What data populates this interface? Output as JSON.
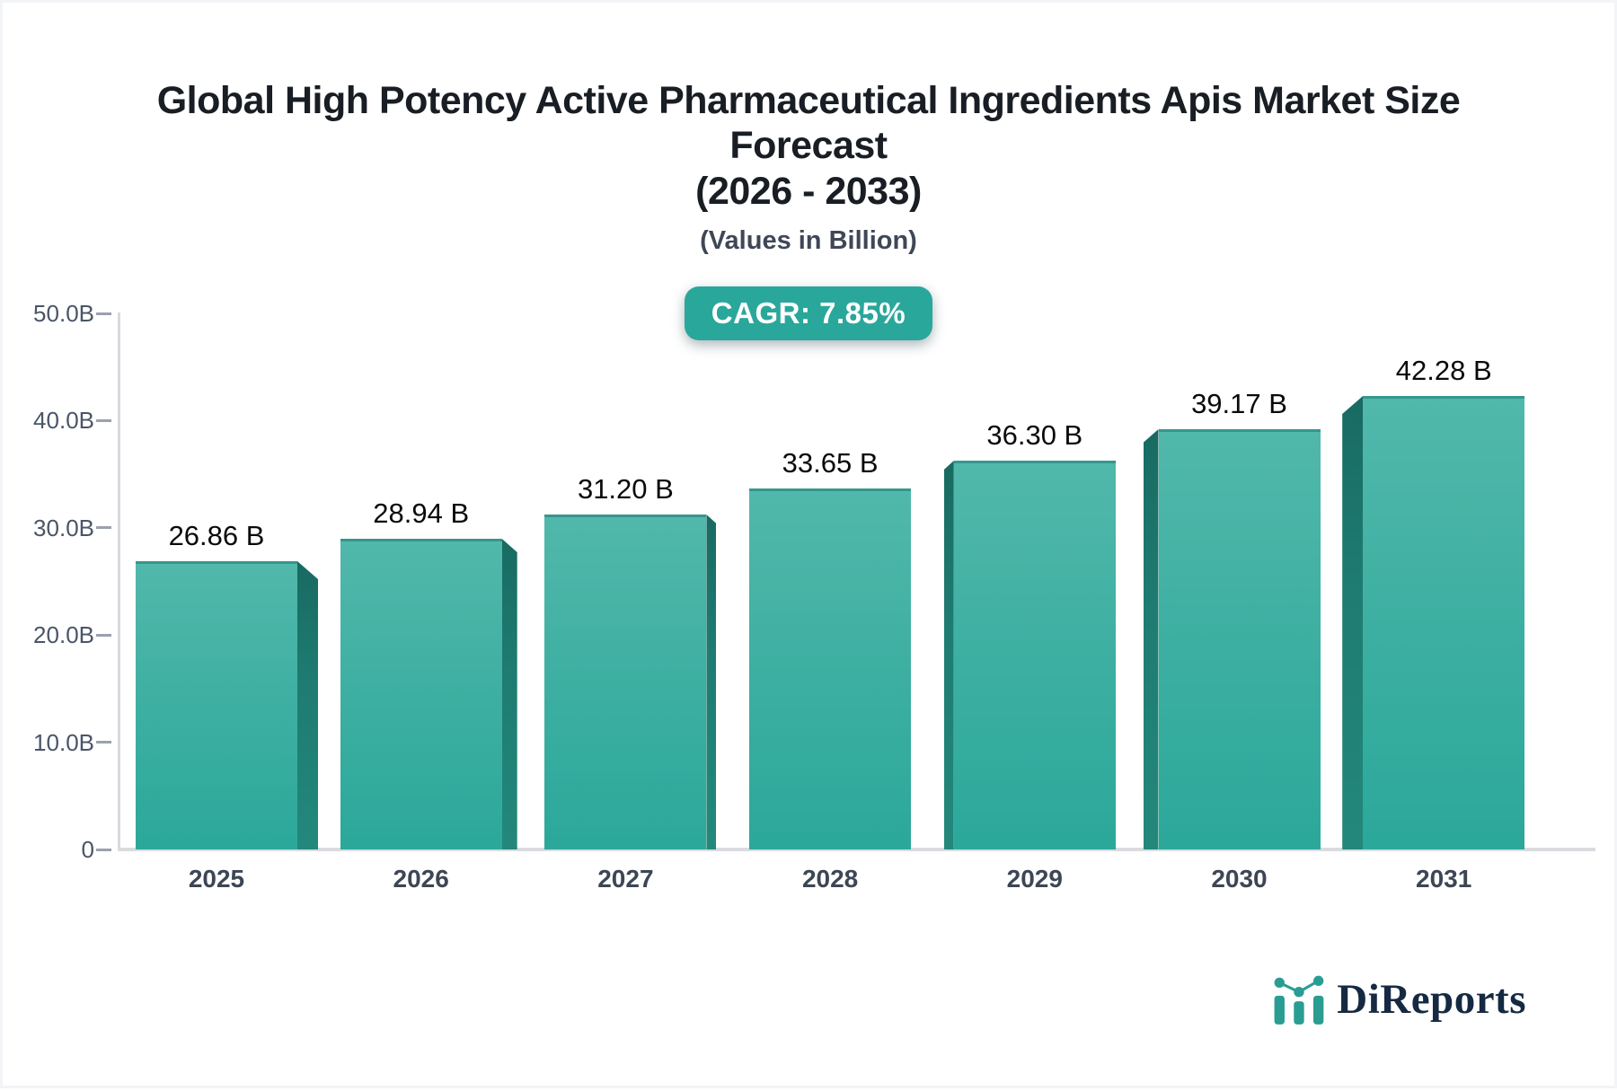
{
  "header": {
    "title_line1": "Global High Potency Active Pharmaceutical Ingredients Apis Market Size Forecast",
    "title_line2": "(2026 - 2033)",
    "subtitle": "(Values in Billion)",
    "cagr_badge": "CAGR: 7.85%"
  },
  "chart_data": {
    "type": "bar",
    "title": "Global High Potency Active Pharmaceutical Ingredients Apis Market Size Forecast (2026 - 2033)",
    "subtitle": "(Values in Billion)",
    "cagr_percent": "7.85%",
    "categories": [
      "2025",
      "2026",
      "2027",
      "2028",
      "2029",
      "2030",
      "2031"
    ],
    "values": [
      26.86,
      28.94,
      31.2,
      33.65,
      36.3,
      39.17,
      42.28
    ],
    "bar_labels": [
      "26.86 B",
      "28.94 B",
      "31.20 B",
      "33.65 B",
      "36.30 B",
      "39.17 B",
      "42.28 B"
    ],
    "xlabel": "",
    "ylabel": "",
    "ylim": [
      0,
      50
    ],
    "yticks": [
      {
        "value": 0,
        "label": "0"
      },
      {
        "value": 10,
        "label": "10.0B"
      },
      {
        "value": 20,
        "label": "20.0B"
      },
      {
        "value": 30,
        "label": "30.0B"
      },
      {
        "value": 40,
        "label": "40.0B"
      },
      {
        "value": 50,
        "label": "50.0B"
      }
    ],
    "grid": false,
    "legend": false,
    "style": "3d-bars, perspective toward center bar",
    "colors": {
      "bar_top": "#51b8ab",
      "bar_bottom": "#2ba89a",
      "bar_edge_top": "#35978c",
      "bar_side": "#1e7b71",
      "axis_line": "#d7d9dd",
      "tick_text": "#4a5568",
      "category_text": "#3d4654",
      "value_text": "#0a0a0a",
      "badge_bg": "#2aa79b"
    }
  },
  "footer": {
    "logo_text": "DiReports",
    "logo_icon": "mini-bar-line-chart-icon",
    "logo_color": "#152a42",
    "logo_icon_color": "#2a9d93"
  }
}
